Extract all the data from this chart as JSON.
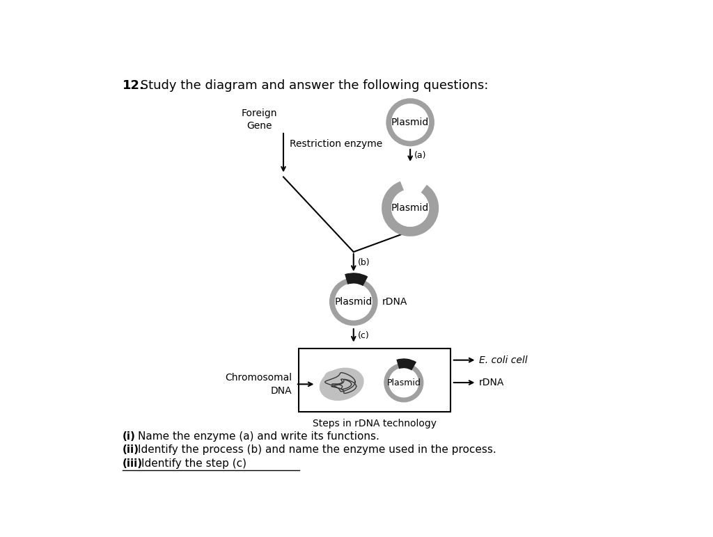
{
  "bg_color": "#ffffff",
  "title_num": "12.",
  "title_text": " Study the diagram and answer the following questions:",
  "ring_color": "#a0a0a0",
  "dark_color": "#1a1a1a",
  "question_i": "   Name the enzyme (a) and write its functions.",
  "question_ii": "  Identify the process (b) and name the enzyme used in the process.",
  "question_iii": " Identify the step (c)"
}
